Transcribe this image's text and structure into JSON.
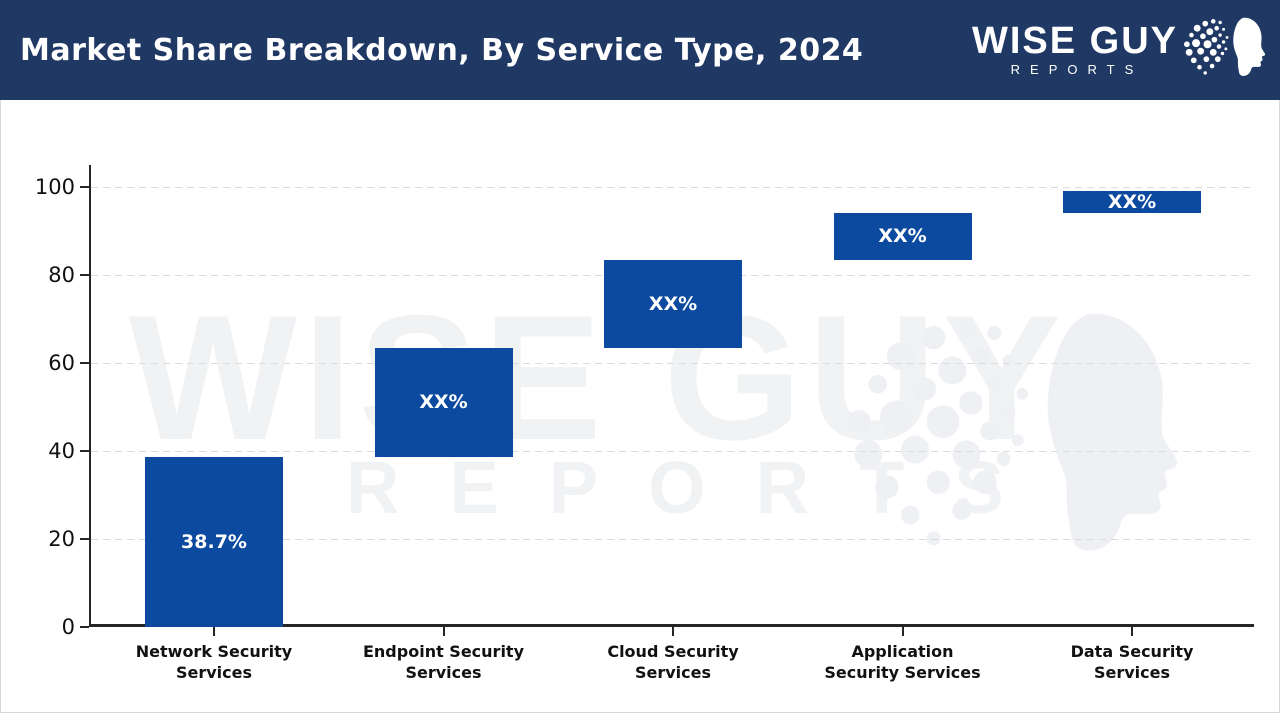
{
  "header": {
    "title": "Market Share Breakdown, By Service Type, 2024",
    "background_color": "#1f3864",
    "brand": {
      "line1": "WISE GUY",
      "line2": "REPORTS"
    }
  },
  "watermark": {
    "line1": "WISE GUY",
    "line2": "REPORTS"
  },
  "chart_data": {
    "type": "bar",
    "subtype": "waterfall",
    "title": "Market Share Breakdown, By Service Type, 2024",
    "categories": [
      [
        "Network Security",
        "Services"
      ],
      [
        "Endpoint Security",
        "Services"
      ],
      [
        "Cloud Security",
        "Services"
      ],
      [
        "Application",
        "Security Services"
      ],
      [
        "Data Security",
        "Services"
      ]
    ],
    "segments": [
      {
        "start": 0,
        "end": 38.7,
        "label": "38.7%"
      },
      {
        "start": 38.7,
        "end": 63.5,
        "label": "XX%"
      },
      {
        "start": 63.5,
        "end": 83.5,
        "label": "XX%"
      },
      {
        "start": 83.5,
        "end": 94,
        "label": "XX%"
      },
      {
        "start": 94,
        "end": 99.2,
        "label": "XX%"
      }
    ],
    "yticks": [
      0,
      20,
      40,
      60,
      80,
      100
    ],
    "ylim": [
      0,
      105
    ],
    "xlabel": "",
    "ylabel": "",
    "grid": "horizontal-dashed",
    "legend": "none",
    "bar_color": "#0b4a9e",
    "bar_label_color": "#ffffff",
    "axis_color": "#262626",
    "grid_color": "#dcdcdc"
  }
}
